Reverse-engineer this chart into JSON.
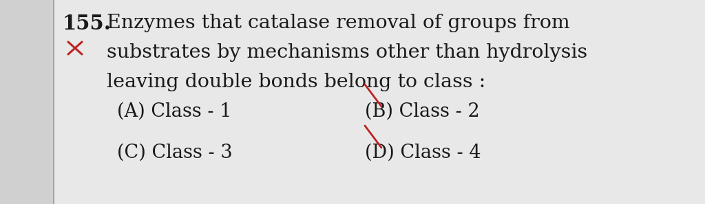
{
  "bg_color": "#e8e8e8",
  "panel_color": "#d0d0d0",
  "paper_color": "#f0f0f0",
  "text_color": "#1a1a1a",
  "question_number": "155.",
  "line1": "Enzymes that catalase removal of groups from",
  "line2": "substrates by mechanisms other than hydrolysis",
  "line3": "leaving double bonds belong to class :",
  "opt_A": "(A) Class - 1",
  "opt_B": "(B) Class - 2",
  "opt_C": "(C) Class - 3",
  "opt_D": "(D) Class - 4",
  "mark_color": "#bb2222",
  "font_size_q": 20.5,
  "font_size_o": 19.5,
  "font_size_num": 21
}
